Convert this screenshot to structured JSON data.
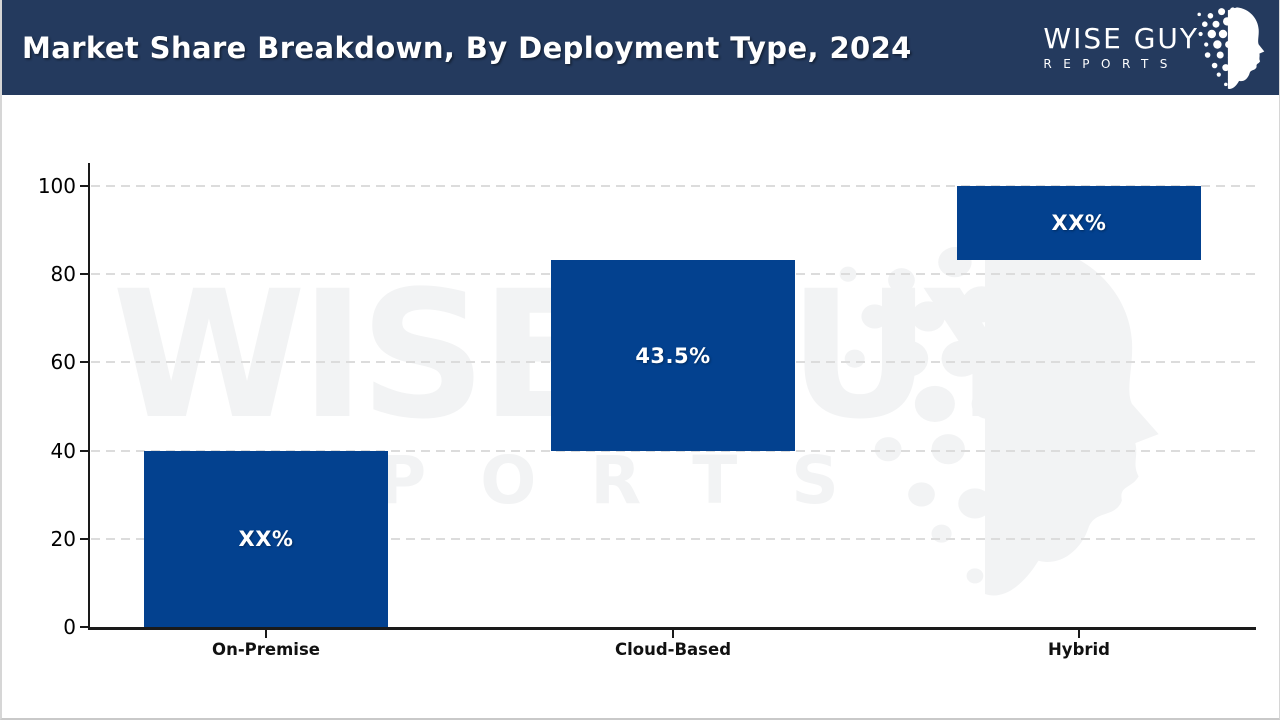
{
  "header": {
    "title": "Market Share Breakdown, By Deployment Type, 2024",
    "bg_color": "#243A5E",
    "logo": {
      "line1": "WISE GUY",
      "line2": "REPORTS"
    }
  },
  "watermark": {
    "line1": "WISE GUY",
    "line2": "REPORTS"
  },
  "chart_data": {
    "type": "bar",
    "subtype": "stacked-waterfall",
    "title": "Market Share Breakdown, By Deployment Type, 2024",
    "categories": [
      "On-Premise",
      "Cloud-Based",
      "Hybrid"
    ],
    "segments": [
      {
        "category": "On-Premise",
        "start": 0,
        "end": 39.8,
        "label": "XX%"
      },
      {
        "category": "Cloud-Based",
        "start": 39.8,
        "end": 83.3,
        "label": "43.5%"
      },
      {
        "category": "Hybrid",
        "start": 83.3,
        "end": 100,
        "label": "XX%"
      }
    ],
    "yticks": [
      0,
      20,
      40,
      60,
      80,
      100
    ],
    "ylim": [
      0,
      100
    ],
    "xlabel": "",
    "ylabel": "",
    "grid": "horizontal-dashed",
    "legend": "none",
    "colors": {
      "bar": "#03418F",
      "grid": "#dcdcdc",
      "axis": "#1a1a1a",
      "header_bg": "#243A5E",
      "bar_label_text": "#ffffff",
      "watermark": "#f2f3f4"
    }
  }
}
